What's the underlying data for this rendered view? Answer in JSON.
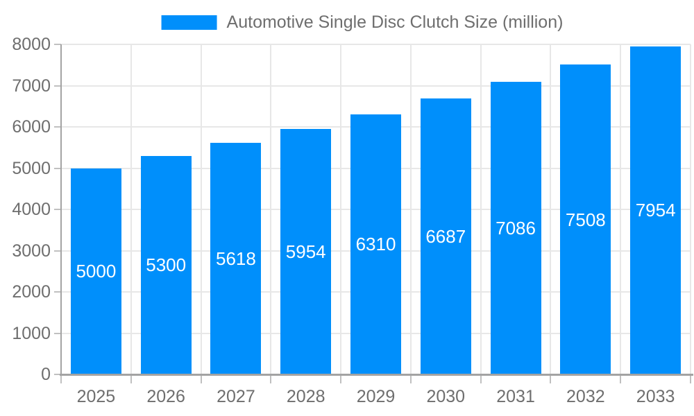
{
  "chart_data": {
    "type": "bar",
    "title": "Automotive Single Disc Clutch Size (million)",
    "categories": [
      "2025",
      "2026",
      "2027",
      "2028",
      "2029",
      "2030",
      "2031",
      "2032",
      "2033"
    ],
    "values": [
      5000,
      5300,
      5618,
      5954,
      6310,
      6687,
      7086,
      7508,
      7954
    ],
    "xlabel": "",
    "ylabel": "",
    "ylim": [
      0,
      8000
    ],
    "ytick_step": 1000,
    "yticks": [
      0,
      1000,
      2000,
      3000,
      4000,
      5000,
      6000,
      7000,
      8000
    ],
    "grid": "on",
    "legend_position": "top",
    "bar_label_position": "inside-center",
    "colors": {
      "bar": "#008FFB",
      "bar_label": "#FFFFFF",
      "axis_label": "#6E6E6E",
      "grid_line": "#E7E7E7",
      "tick_line": "#C0C0C0",
      "axis_line": "#A3A3A3",
      "background": "#FFFFFF"
    }
  }
}
